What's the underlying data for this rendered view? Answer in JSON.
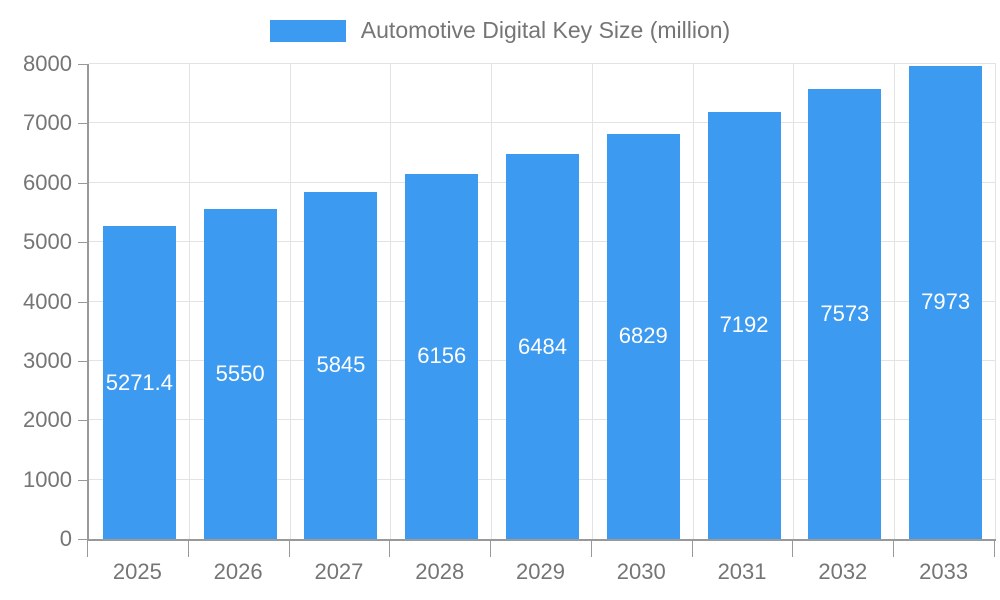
{
  "legend": {
    "label": "Automotive Digital Key Size (million)",
    "swatch_color": "#3C9AF0"
  },
  "chart_data": {
    "type": "bar",
    "title": "",
    "xlabel": "",
    "ylabel": "",
    "categories": [
      "2025",
      "2026",
      "2027",
      "2028",
      "2029",
      "2030",
      "2031",
      "2032",
      "2033"
    ],
    "series": [
      {
        "name": "Automotive Digital Key Size (million)",
        "values": [
          5271.4,
          5550,
          5845,
          6156,
          6484,
          6829,
          7192,
          7573,
          7973
        ],
        "bar_labels": [
          "5271.4",
          "5550",
          "5845",
          "6156",
          "6484",
          "6829",
          "7192",
          "7573",
          "7973"
        ]
      }
    ],
    "ylim": [
      0,
      8000
    ],
    "ytick_interval": 1000,
    "ytick_labels": [
      "0",
      "1000",
      "2000",
      "3000",
      "4000",
      "5000",
      "6000",
      "7000",
      "8000"
    ],
    "grid": true,
    "legend_position": "top",
    "colors": {
      "bar": "#3C9AF0",
      "grid": "#e3e3e3",
      "axis": "#999999",
      "tick_text": "#757575",
      "bar_label_text": "#ffffff",
      "background": "#ffffff"
    }
  }
}
